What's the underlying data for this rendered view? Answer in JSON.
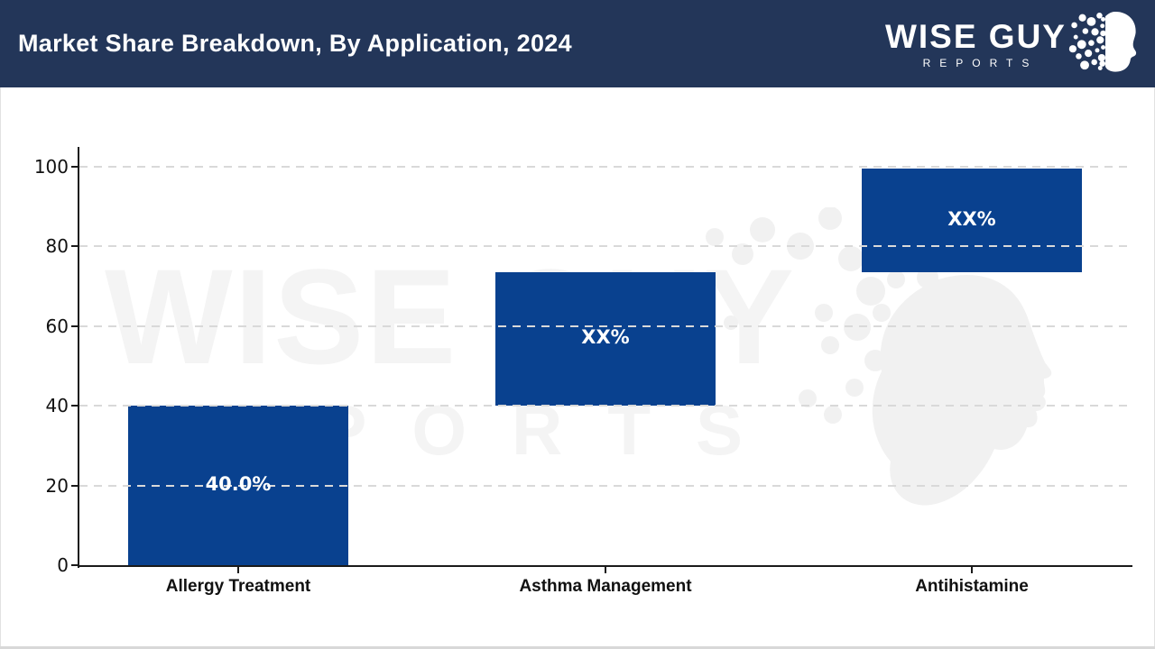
{
  "header": {
    "title": "Market Share Breakdown, By Application, 2024",
    "logo": {
      "line1": "WISE GUY",
      "line2": "REPORTS",
      "face_icon": "dotted-head-profile-icon"
    }
  },
  "watermark": {
    "line1": "WISE GUY",
    "line2": "REPORTS",
    "face_icon": "dotted-head-profile-watermark"
  },
  "chart_data": {
    "type": "bar",
    "variant": "waterfall",
    "title": "Market Share Breakdown, By Application, 2024",
    "categories": [
      "Allergy Treatment",
      "Asthma Management",
      "Antihistamine"
    ],
    "segments": [
      {
        "category": "Allergy Treatment",
        "start": 0,
        "end": 40,
        "label": "40.0%"
      },
      {
        "category": "Asthma Management",
        "start": 40,
        "end": 73.5,
        "label": "XX%"
      },
      {
        "category": "Antihistamine",
        "start": 73.5,
        "end": 99.5,
        "label": "XX%"
      }
    ],
    "xlabel": "",
    "ylabel": "",
    "ylim": [
      0,
      104.5
    ],
    "yticks": [
      0,
      20,
      40,
      60,
      80,
      100
    ],
    "grid": {
      "axis": "y",
      "style": "dashed",
      "color": "#d9d9d9",
      "drawn_above_bars": true
    },
    "legend": "none",
    "colors": {
      "bar": "#09418f",
      "bar_label_text": "#ffffff",
      "axis": "#1a1a1a",
      "tick_text": "#111111",
      "header_bg": "#233659",
      "watermark": "#f3f3f3",
      "background": "#ffffff"
    }
  }
}
